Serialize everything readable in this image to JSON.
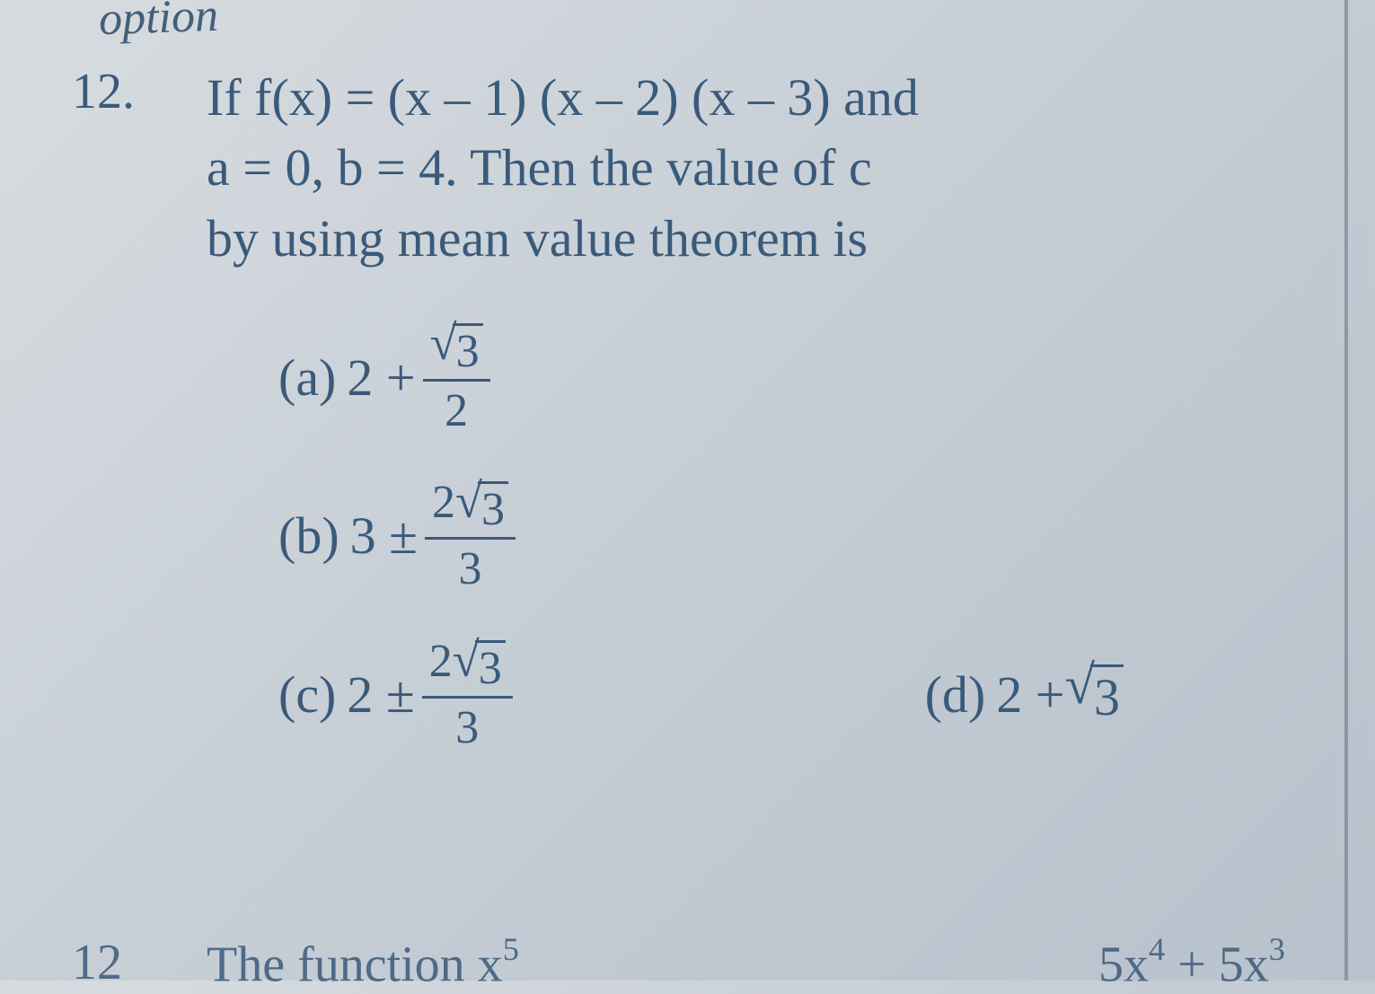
{
  "handwritten_text": "option",
  "question": {
    "number": "12.",
    "line1_prefix": "If f(x) = (x – 1) (x – 2) (x – 3) and",
    "line2": "a = 0, b = 4.  Then the value of c",
    "line3": "by using mean value theorem is"
  },
  "options": {
    "a": {
      "label": "(a)",
      "base": "2 +",
      "frac_num_sqrt": "3",
      "frac_den": "2"
    },
    "b": {
      "label": "(b)",
      "base": "3 ±",
      "frac_num_coeff": "2",
      "frac_num_sqrt": "3",
      "frac_den": "3"
    },
    "c": {
      "label": "(c)",
      "base": "2 ±",
      "frac_num_coeff": "2",
      "frac_num_sqrt": "3",
      "frac_den": "3"
    },
    "d": {
      "label": "(d)",
      "base": "2 + ",
      "sqrt": "3"
    }
  },
  "partial": {
    "number": "12",
    "text1": "The function x",
    "exp1": "5",
    "text2": "5x",
    "exp2": "4",
    "text3": " + 5x",
    "exp3": "3"
  },
  "colors": {
    "text": "#3a5a7a",
    "background_start": "#d8dce0",
    "background_end": "#b8c2cc"
  },
  "typography": {
    "question_fontsize": 58,
    "option_fontsize": 58,
    "fraction_fontsize": 52,
    "font_family": "Times New Roman"
  }
}
